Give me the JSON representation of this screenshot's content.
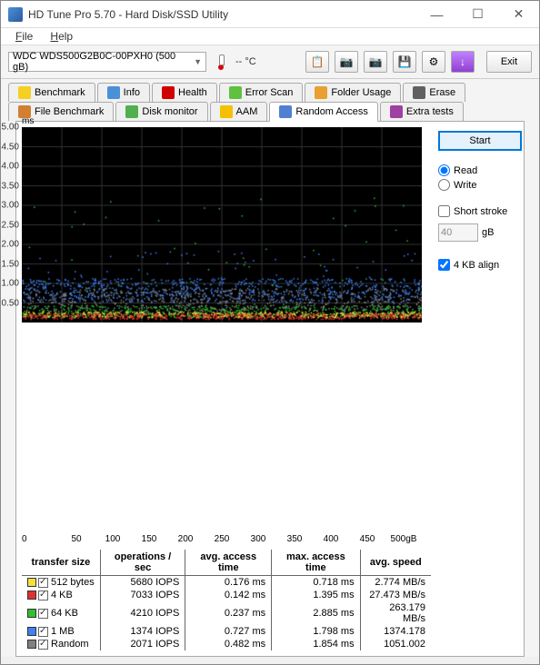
{
  "window": {
    "title": "HD Tune Pro 5.70 - Hard Disk/SSD Utility"
  },
  "menu": {
    "file": "File",
    "help": "Help"
  },
  "toolbar": {
    "drive": "WDC WDS500G2B0C-00PXH0 (500 gB)",
    "temp": "-- °C",
    "exit": "Exit"
  },
  "tabs": {
    "row1": [
      "Benchmark",
      "Info",
      "Health",
      "Error Scan",
      "Folder Usage",
      "Erase"
    ],
    "row2": [
      "File Benchmark",
      "Disk monitor",
      "AAM",
      "Random Access",
      "Extra tests"
    ],
    "active": "Random Access",
    "icon_colors": [
      "#f5d020",
      "#4a90d9",
      "#d00000",
      "#60c040",
      "#e8a030",
      "#606060",
      "#d08030",
      "#50b050",
      "#f5c000",
      "#5080d0",
      "#a040a0"
    ]
  },
  "sidepanel": {
    "start": "Start",
    "read": "Read",
    "write": "Write",
    "short_stroke": "Short stroke",
    "stroke_val": "40",
    "stroke_unit": "gB",
    "kb_align": "4 KB align"
  },
  "chart": {
    "y_unit": "ms",
    "ylim": [
      0,
      5.0
    ],
    "yticks": [
      0.5,
      1.0,
      1.5,
      2.0,
      2.5,
      3.0,
      3.5,
      4.0,
      4.5,
      5.0
    ],
    "xlim": [
      0,
      500
    ],
    "xticks": [
      0,
      50,
      100,
      150,
      200,
      250,
      300,
      350,
      400,
      450,
      "500gB"
    ],
    "background": "#000000",
    "grid_color": "#333333",
    "series_colors": {
      "512b": "#f5e040",
      "4KB": "#e03030",
      "64KB": "#30c030",
      "1MB": "#4080f0",
      "Random": "#808080"
    }
  },
  "results": {
    "headers": [
      "transfer size",
      "operations / sec",
      "avg. access time",
      "max. access time",
      "avg. speed"
    ],
    "rows": [
      {
        "color": "#f5e040",
        "label": "512 bytes",
        "ops": "5680 IOPS",
        "avg": "0.176 ms",
        "max": "0.718 ms",
        "speed": "2.774 MB/s"
      },
      {
        "color": "#e03030",
        "label": "4 KB",
        "ops": "7033 IOPS",
        "avg": "0.142 ms",
        "max": "1.395 ms",
        "speed": "27.473 MB/s"
      },
      {
        "color": "#30c030",
        "label": "64 KB",
        "ops": "4210 IOPS",
        "avg": "0.237 ms",
        "max": "2.885 ms",
        "speed": "263.179 MB/s"
      },
      {
        "color": "#4080f0",
        "label": "1 MB",
        "ops": "1374 IOPS",
        "avg": "0.727 ms",
        "max": "1.798 ms",
        "speed": "1374.178"
      },
      {
        "color": "#808080",
        "label": "Random",
        "ops": "2071 IOPS",
        "avg": "0.482 ms",
        "max": "1.854 ms",
        "speed": "1051.002"
      }
    ]
  }
}
